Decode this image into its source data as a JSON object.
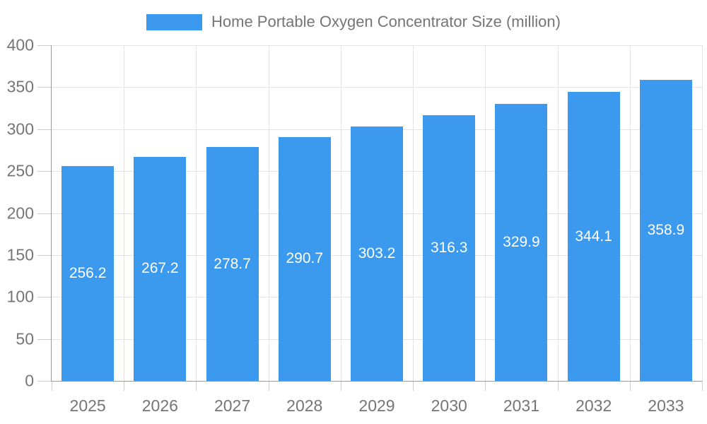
{
  "chart_data": {
    "type": "bar",
    "title": "Home Portable Oxygen Concentrator Size (million)",
    "categories": [
      "2025",
      "2026",
      "2027",
      "2028",
      "2029",
      "2030",
      "2031",
      "2032",
      "2033"
    ],
    "values": [
      256.2,
      267.2,
      278.7,
      290.7,
      303.2,
      316.3,
      329.9,
      344.1,
      358.9
    ],
    "value_labels": [
      "256.2",
      "267.2",
      "278.7",
      "290.7",
      "303.2",
      "316.3",
      "329.9",
      "344.1",
      "358.9"
    ],
    "xlabel": "",
    "ylabel": "",
    "ylim": [
      0,
      400
    ],
    "ytick_step": 50,
    "ytick_labels": [
      "0",
      "50",
      "100",
      "150",
      "200",
      "250",
      "300",
      "350",
      "400"
    ],
    "grid": "on",
    "legend_position": "top-center",
    "colors": {
      "bar": "#3b99ee",
      "value_label_text": "#ffffff",
      "axis_text": "#757575",
      "gridline": "#e3e3e3",
      "axis_line": "#9a9a9a",
      "tick_mark": "#cccccc",
      "background": "#ffffff"
    }
  }
}
